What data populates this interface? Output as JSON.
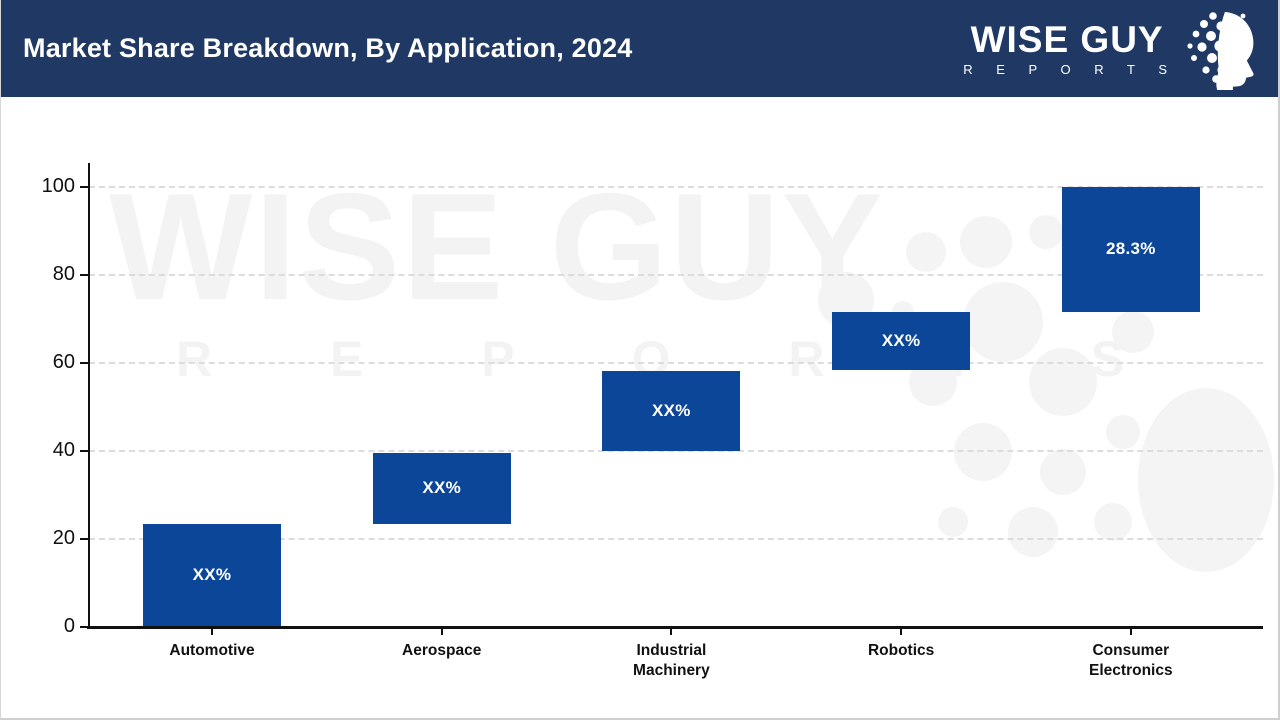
{
  "header": {
    "title": "Market Share Breakdown, By Application, 2024",
    "bg_color": "#1f3864",
    "logo": {
      "line1": "WISE GUY",
      "line2": "R E P O R T S"
    }
  },
  "watermark": {
    "line1": "WISE GUY",
    "line2": "R E P O R T S"
  },
  "chart_data": {
    "type": "bar",
    "subtype": "waterfall",
    "title": "Market Share Breakdown, By Application, 2024",
    "xlabel": "",
    "ylabel": "",
    "categories": [
      "Automotive",
      "Aerospace",
      "Industrial Machinery",
      "Robotics",
      "Consumer Electronics"
    ],
    "category_lines": [
      [
        "Automotive"
      ],
      [
        "Aerospace"
      ],
      [
        "Industrial",
        "Machinery"
      ],
      [
        "Robotics"
      ],
      [
        "Consumer",
        "Electronics"
      ]
    ],
    "series": [
      {
        "name": "Market Share (%)",
        "segments": [
          {
            "category": "Automotive",
            "start": 0,
            "end": 23.5,
            "value": 23.5,
            "label": "XX%"
          },
          {
            "category": "Aerospace",
            "start": 23.5,
            "end": 39.5,
            "value": 16.0,
            "label": "XX%"
          },
          {
            "category": "Industrial Machinery",
            "start": 40.0,
            "end": 58.2,
            "value": 18.2,
            "label": "XX%"
          },
          {
            "category": "Robotics",
            "start": 58.4,
            "end": 71.6,
            "value": 13.2,
            "label": "XX%"
          },
          {
            "category": "Consumer Electronics",
            "start": 71.7,
            "end": 100,
            "value": 28.3,
            "label": "28.3%"
          }
        ]
      }
    ],
    "yticks": [
      0,
      20,
      40,
      60,
      80,
      100
    ],
    "ylim": [
      0,
      105
    ],
    "bar_color": "#0b4699",
    "label_color": "#ffffff",
    "grid": "dashed-horizontal",
    "gridline_color": "#dcdcdc",
    "legend": "none"
  }
}
